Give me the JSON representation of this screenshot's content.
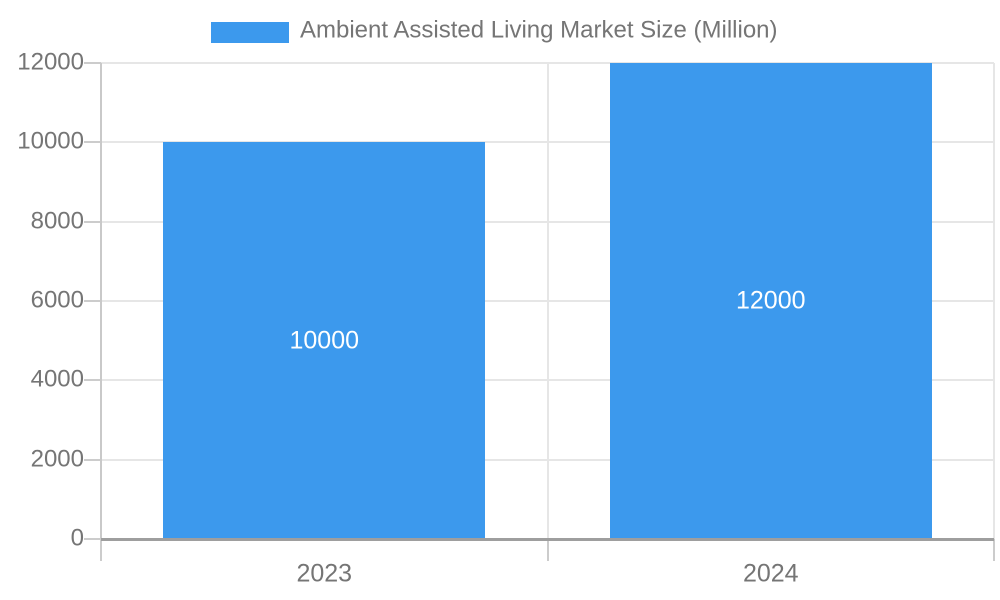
{
  "legend": {
    "label": "Ambient Assisted Living Market Size (Million)",
    "swatch_color": "#3C99ED"
  },
  "chart_data": {
    "type": "bar",
    "title": "Ambient Assisted Living Market Size (Million)",
    "categories": [
      "2023",
      "2024"
    ],
    "values": [
      10000,
      12000
    ],
    "bar_labels": [
      "10000",
      "12000"
    ],
    "xlabel": "",
    "ylabel": "",
    "ylim": [
      0,
      12000
    ],
    "ytick_step": 2000,
    "yticks": [
      0,
      2000,
      4000,
      6000,
      8000,
      10000,
      12000
    ],
    "ytick_labels": [
      "0",
      "2000",
      "4000",
      "6000",
      "8000",
      "10000",
      "12000"
    ],
    "grid": true,
    "legend_position": "top",
    "colors": {
      "bar": "#3C99ED",
      "axis_text": "#757575",
      "bar_label_text": "#FFFFFF",
      "gridline": "#E6E6E6",
      "axis_line": "#C9C9C9",
      "tick": "#CCCCCC",
      "baseline": "#9E9E9E",
      "background": "#FFFFFF"
    }
  }
}
